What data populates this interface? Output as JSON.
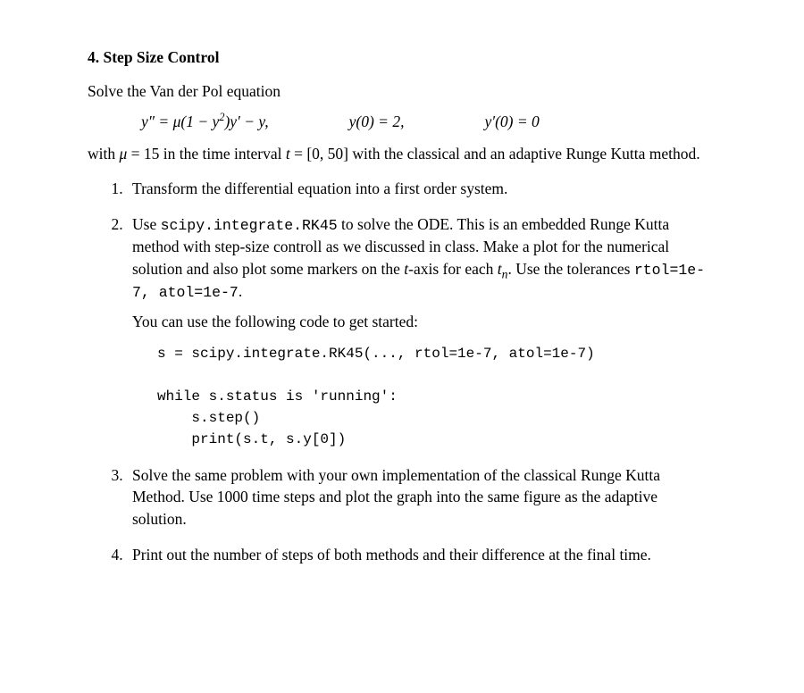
{
  "title": "4. Step Size Control",
  "intro": "Solve the Van der Pol equation",
  "eq": {
    "ode_html": "y″ = μ(1 − y<sup>2</sup>)y′ − y,",
    "ic1": "y(0) = 2,",
    "ic2": "y′(0) = 0"
  },
  "withline_html": "with <span style='font-style:italic'>μ</span> = 15 in the time interval <span style='font-style:italic'>t</span> = [0, 50] with the classical and an adaptive Runge Kutta method.",
  "tasks": {
    "t1": "Transform the differential equation into a first order system.",
    "t2_html": "Use <span class='tt'>scipy.integrate.RK45</span> to solve the ODE. This is an embedded Runge Kutta method with step-size controll as we discussed in class. Make a plot for the numerical solution and also plot some markers on the <span style='font-style:italic'>t</span>-axis for each <span style='font-style:italic'>t</span><sub>n</sub>. Use the tolerances <span class='tt'>rtol=1e-7, atol=1e-7</span>.",
    "t2b": "You can use the following code to get started:",
    "code": "s = scipy.integrate.RK45(..., rtol=1e-7, atol=1e-7)\n\nwhile s.status is 'running':\n    s.step()\n    print(s.t, s.y[0])",
    "t3": "Solve the same problem with your own implementation of the classical Runge Kutta Method. Use 1000 time steps and plot the graph into the same figure as the adaptive solution.",
    "t4": "Print out the number of steps of both methods and their difference at the final time."
  }
}
